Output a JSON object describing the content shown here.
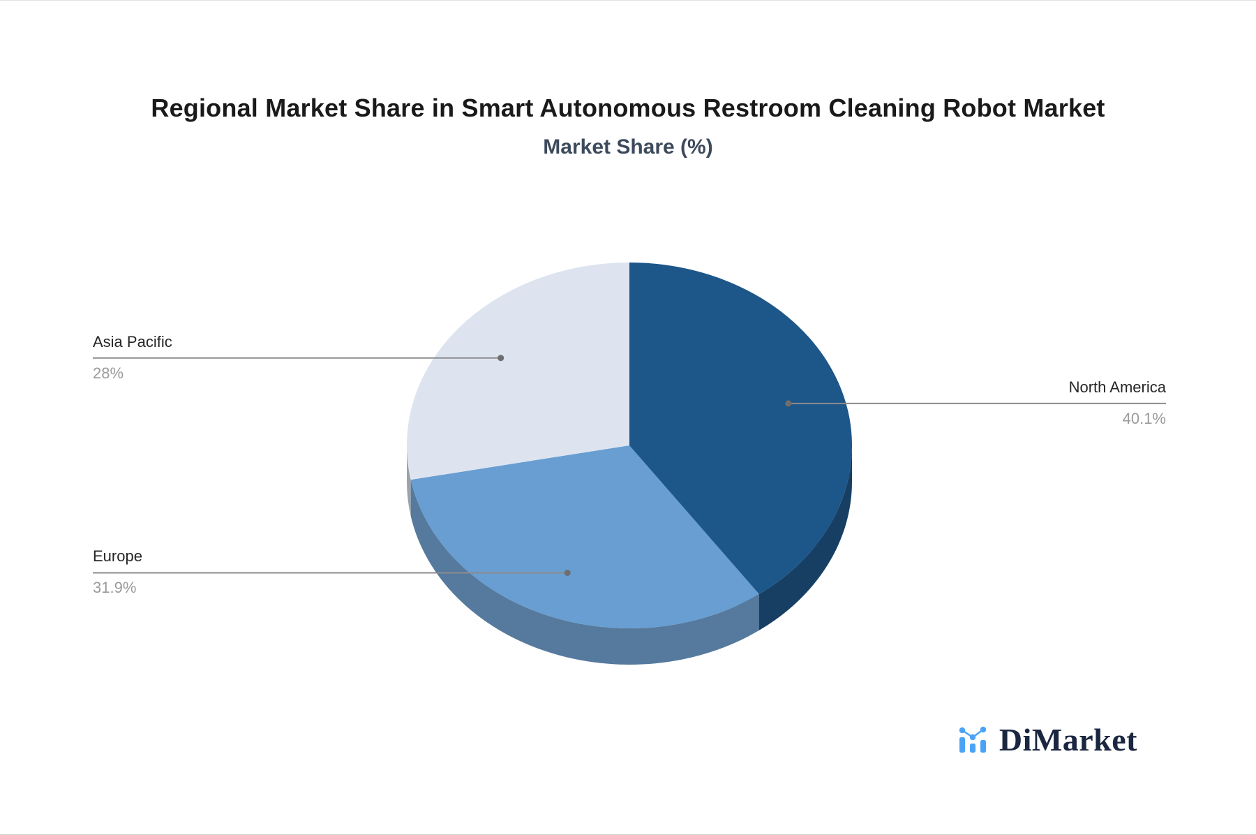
{
  "header": {
    "title": "Regional Market Share in Smart Autonomous Restroom Cleaning Robot Market",
    "subtitle": "Market Share (%)"
  },
  "chart_data": {
    "type": "pie",
    "style": "3d",
    "title": "Regional Market Share in Smart Autonomous Restroom Cleaning Robot Market",
    "subtitle": "Market Share (%)",
    "unit": "%",
    "start_angle": "12 o'clock",
    "direction": "clockwise",
    "legend_position": "none (leader-line labels)",
    "slices": [
      {
        "label": "North America",
        "value": 40.1,
        "display": "40.1%",
        "color": "#1d5689",
        "side_color": "#173f64",
        "label_side": "right"
      },
      {
        "label": "Europe",
        "value": 31.9,
        "display": "31.9%",
        "color": "#689ed1",
        "side_color": "#567a9e",
        "label_side": "left"
      },
      {
        "label": "Asia Pacific",
        "value": 28,
        "display": "28%",
        "color": "#dde4f0",
        "side_color": "#9aa3ac",
        "label_side": "left"
      }
    ]
  },
  "leader": {
    "line_color": "#8c8c8c",
    "dot_color": "#6e6e6e"
  },
  "logo": {
    "text": "DiMarket",
    "icon": "bar-chart-sparkline-icon",
    "icon_color": "#4aa3f5",
    "text_color": "#1b2740"
  }
}
